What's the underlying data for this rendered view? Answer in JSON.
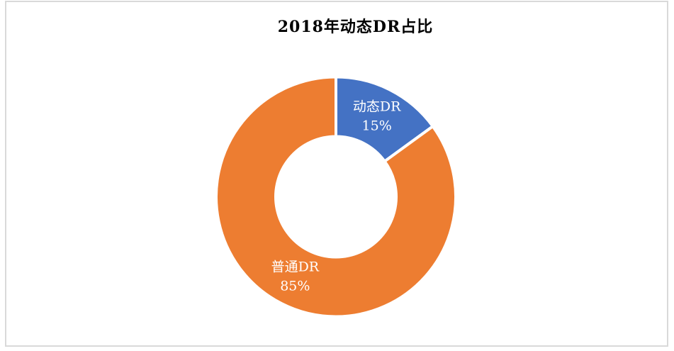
{
  "window": {
    "background": "#ffffff",
    "frame_border_color": "#d9d9d9"
  },
  "chart_data": {
    "type": "pie",
    "subtype": "donut",
    "title": "2018年动态DR占比",
    "hole_ratio": 0.5,
    "start_angle_deg": 0,
    "direction": "clockwise",
    "legend": "none",
    "separator_color": "#ffffff",
    "label_style": {
      "color": "#ffffff",
      "position": "inside"
    },
    "categories": [
      "动态DR",
      "普通DR"
    ],
    "values": [
      15,
      85
    ],
    "slices": [
      {
        "label": "动态DR",
        "value": 15,
        "value_text": "15%",
        "color": "#4472c4"
      },
      {
        "label": "普通DR",
        "value": 85,
        "value_text": "85%",
        "color": "#ed7d31"
      }
    ]
  }
}
